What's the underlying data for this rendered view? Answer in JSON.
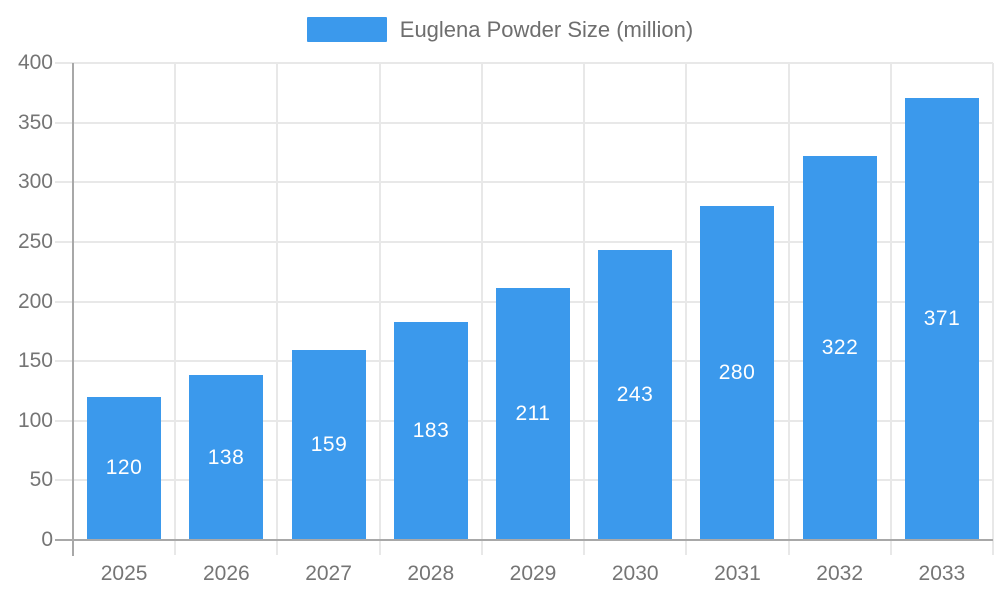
{
  "chart_data": {
    "type": "bar",
    "title": "Euglena Powder Size (million)",
    "legend": [
      "Euglena Powder Size (million)"
    ],
    "legend_position": "top-center",
    "categories": [
      "2025",
      "2026",
      "2027",
      "2028",
      "2029",
      "2030",
      "2031",
      "2032",
      "2033"
    ],
    "series": [
      {
        "name": "Euglena Powder Size (million)",
        "values": [
          120,
          138,
          159,
          183,
          211,
          243,
          280,
          322,
          371
        ]
      }
    ],
    "bar_value_labels": [
      "120",
      "138",
      "159",
      "183",
      "211",
      "243",
      "280",
      "322",
      "371"
    ],
    "xlabel": "",
    "ylabel": "",
    "ylim": [
      0,
      400
    ],
    "y_ticks": [
      0,
      50,
      100,
      150,
      200,
      250,
      300,
      350,
      400
    ],
    "grid": true,
    "colors": {
      "bar": "#3B99EC",
      "bar_value_label": "#ffffff",
      "axis_line": "#a8a8a8",
      "gridline": "#e8e8e8",
      "tick_label": "#757575",
      "legend_text": "#6e6e6e",
      "background": "#ffffff"
    }
  }
}
